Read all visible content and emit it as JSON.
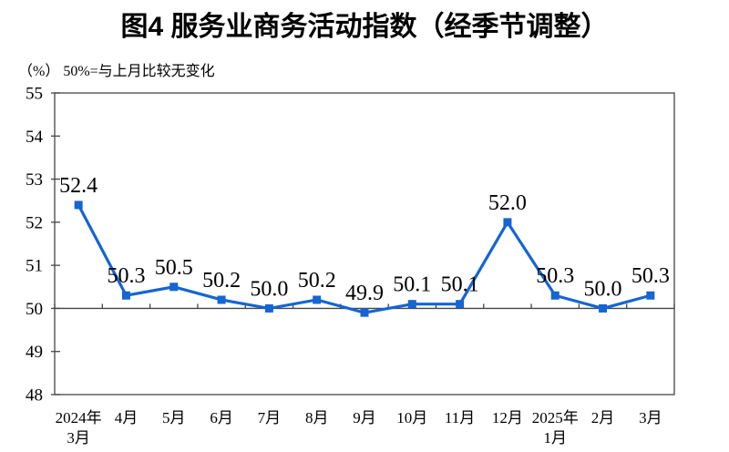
{
  "chart_data": {
    "type": "line",
    "title": "图4 服务业商务活动指数（经季节调整）",
    "unit_note": "（%） 50%=与上月比较无变化",
    "categories": [
      "2024年\n3月",
      "4月",
      "5月",
      "6月",
      "7月",
      "8月",
      "9月",
      "10月",
      "11月",
      "12月",
      "2025年\n1月",
      "2月",
      "3月"
    ],
    "values": [
      52.4,
      50.3,
      50.5,
      50.2,
      50.0,
      50.2,
      49.9,
      50.1,
      50.1,
      52.0,
      50.3,
      50.0,
      50.3
    ],
    "data_labels": [
      "52.4",
      "50.3",
      "50.5",
      "50.2",
      "50.0",
      "50.2",
      "49.9",
      "50.1",
      "50.1",
      "52.0",
      "50.3",
      "50.0",
      "50.3"
    ],
    "yticks": [
      "48",
      "49",
      "50",
      "51",
      "52",
      "53",
      "54",
      "55"
    ],
    "ylim": [
      48,
      55
    ],
    "reference_line": 50,
    "grid": false,
    "legend_position": "none",
    "marker": "square",
    "colors": {
      "line": "#1565D2",
      "axis": "#454545",
      "text": "#000000"
    }
  }
}
